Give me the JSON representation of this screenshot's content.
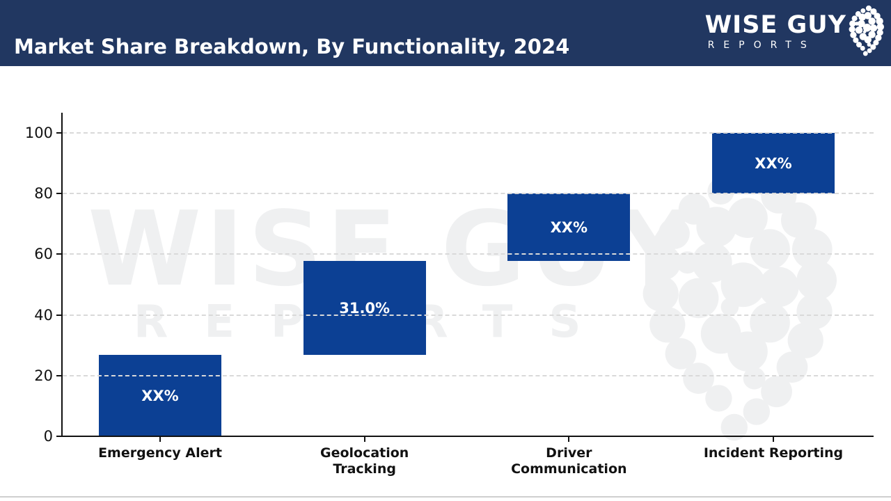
{
  "header": {
    "title": "Market Share Breakdown, By Functionality, 2024",
    "logo": {
      "name": "WISE GUY",
      "subtitle": "REPORTS"
    }
  },
  "watermark": {
    "name": "WISE GUY",
    "subtitle": "REPORTS"
  },
  "icons": {
    "brand_head": "dotted-head-profile-icon",
    "watermark_head": "dotted-head-profile-icon"
  },
  "colors": {
    "header_bg": "#213761",
    "bar": "#0c4094",
    "grid": "#d9d9d9",
    "axis": "#111111",
    "bar_label": "#ffffff",
    "watermark": "#eff0f1"
  },
  "chart_data": {
    "type": "bar",
    "subtype": "waterfall",
    "title": "Market Share Breakdown, By Functionality, 2024",
    "categories": [
      "Emergency Alert",
      "Geolocation Tracking",
      "Driver Communication",
      "Incident Reporting"
    ],
    "bars": [
      {
        "category_lines": [
          "Emergency Alert"
        ],
        "start": 0,
        "end": 26.8,
        "value_label": "XX%"
      },
      {
        "category_lines": [
          "Geolocation",
          "Tracking"
        ],
        "start": 26.8,
        "end": 57.8,
        "value_label": "31.0%",
        "value": 31.0
      },
      {
        "category_lines": [
          "Driver",
          "Communication"
        ],
        "start": 57.8,
        "end": 80.0,
        "value_label": "XX%"
      },
      {
        "category_lines": [
          "Incident Reporting"
        ],
        "start": 80.0,
        "end": 100.0,
        "value_label": "XX%"
      }
    ],
    "axis": {
      "ylim": [
        0,
        100
      ],
      "yticks": [
        0,
        20,
        40,
        60,
        80,
        100
      ],
      "grid": "horizontal-dashed",
      "legend": "none"
    }
  }
}
